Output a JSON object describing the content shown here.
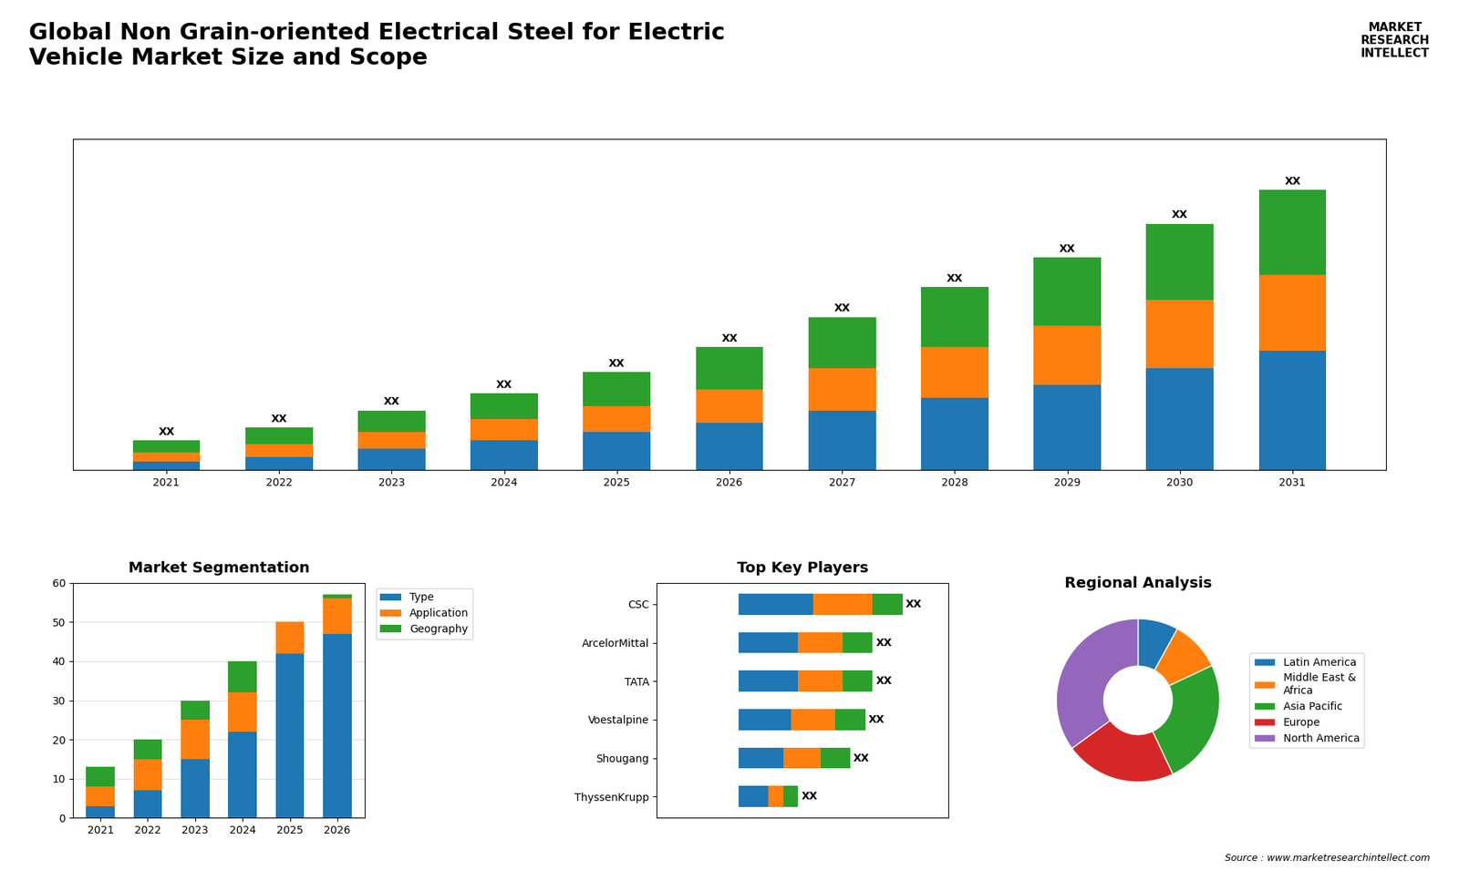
{
  "title": "Global Non Grain-oriented Electrical Steel for Electric\nVehicle Market Size and Scope",
  "annotations": [
    "MARKET\nRESEARCH\nINTELLECT",
    "Source : www.marketresearchintellect.com"
  ],
  "chart_data": [
    {
      "type": "bar",
      "stacked": true,
      "categories": [
        "2021",
        "2022",
        "2023",
        "2024",
        "2025",
        "2026",
        "2027",
        "2028",
        "2029",
        "2030",
        "2031"
      ],
      "series": [
        {
          "values": [
            2,
            3,
            5,
            7,
            9,
            11,
            14,
            17,
            20,
            24,
            28
          ]
        },
        {
          "values": [
            2,
            3,
            4,
            5,
            6,
            8,
            10,
            12,
            14,
            16,
            18
          ]
        },
        {
          "values": [
            3,
            4,
            5,
            6,
            8,
            10,
            12,
            14,
            16,
            18,
            20
          ],
          "value_labels": [
            "XX",
            "XX",
            "XX",
            "XX",
            "XX",
            "XX",
            "XX",
            "XX",
            "XX",
            "XX",
            "XX"
          ]
        }
      ],
      "ylim": [
        0,
        77.88
      ],
      "yticks": [],
      "tick_labels": "x"
    },
    {
      "type": "bar",
      "title": "Market Segmentation",
      "stacked": true,
      "categories": [
        "2021",
        "2022",
        "2023",
        "2024",
        "2025",
        "2026"
      ],
      "series": [
        {
          "name": "Type",
          "values": [
            3,
            7,
            15,
            22,
            42,
            47
          ]
        },
        {
          "name": "Application",
          "values": [
            5,
            8,
            10,
            10,
            8,
            9
          ]
        },
        {
          "name": "Geography",
          "values": [
            5,
            5,
            5,
            8,
            0,
            1
          ]
        }
      ],
      "ylim": [
        0,
        60
      ],
      "yticks": [
        0,
        10,
        20,
        30,
        40,
        50,
        60
      ],
      "grid": true,
      "legend": "upper left"
    },
    {
      "type": "bar",
      "title": "Top Key Players",
      "orientation": "horizontal",
      "stacked": true,
      "categories": [
        "CSC",
        "ArcelorMittal",
        "TATA",
        "Voestalpine",
        "Shougang",
        "ThyssenKrupp"
      ],
      "series": [
        {
          "values": [
            5.0,
            4.0,
            4.0,
            3.5,
            3.0,
            2.0
          ]
        },
        {
          "values": [
            4.0,
            3.0,
            3.0,
            3.0,
            2.5,
            1.0
          ]
        },
        {
          "values": [
            2.0,
            2.0,
            2.0,
            2.0,
            2.0,
            1.0
          ],
          "value_labels": [
            "XX",
            "XX",
            "XX",
            "XX",
            "XX",
            "XX"
          ]
        }
      ],
      "xlim": [
        -5.5,
        14.08
      ],
      "xticks": [],
      "tick_labels": "y"
    },
    {
      "type": "pie",
      "title": "Regional Analysis",
      "categories": [
        "Latin America",
        "Middle East &\nAfrica",
        "Asia Pacific",
        "Europe",
        "North America"
      ],
      "values": [
        8,
        10,
        25,
        22,
        35
      ],
      "legend": "center left"
    }
  ]
}
